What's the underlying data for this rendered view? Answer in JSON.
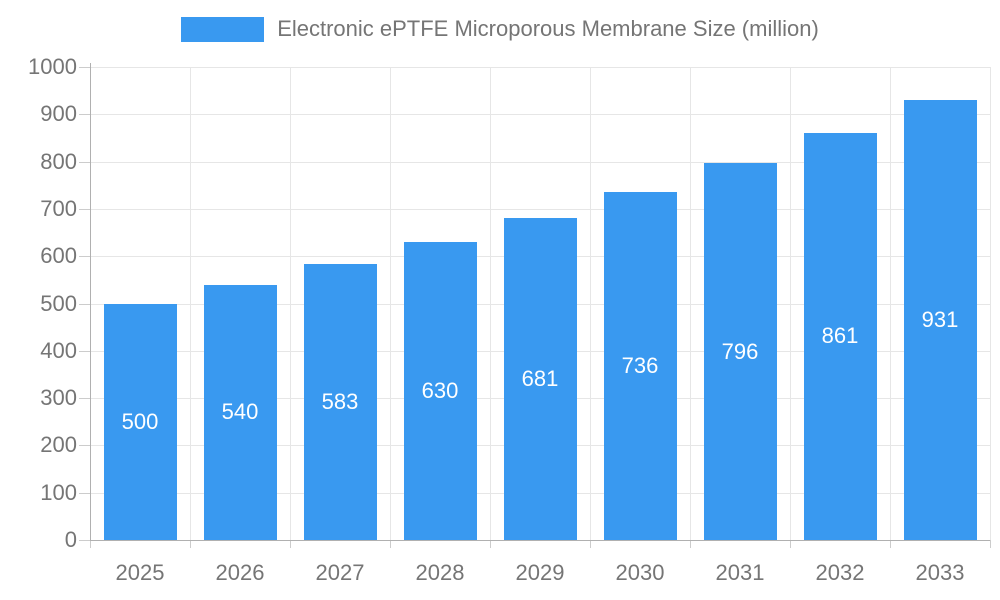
{
  "chart_data": {
    "type": "bar",
    "title": "Electronic ePTFE Microporous Membrane Size (million)",
    "legend": {
      "position": "top",
      "entries": [
        "Electronic ePTFE Microporous Membrane Size (million)"
      ]
    },
    "categories": [
      "2025",
      "2026",
      "2027",
      "2028",
      "2029",
      "2030",
      "2031",
      "2032",
      "2033"
    ],
    "values": [
      500,
      540,
      583,
      630,
      681,
      736,
      796,
      861,
      931
    ],
    "xlabel": "",
    "ylabel": "",
    "ylim": [
      0,
      1000
    ],
    "ytick_step": 100,
    "ytick_labels": [
      "0",
      "100",
      "200",
      "300",
      "400",
      "500",
      "600",
      "700",
      "800",
      "900",
      "1000"
    ],
    "grid": true,
    "bar_labels_shown": true,
    "colors": {
      "bar": "#3999f0",
      "bar_label": "#ffffff",
      "axis_text": "#757575",
      "gridline": "#e6e6e6",
      "axis_line": "#b0b0b0",
      "background": "#ffffff"
    }
  }
}
